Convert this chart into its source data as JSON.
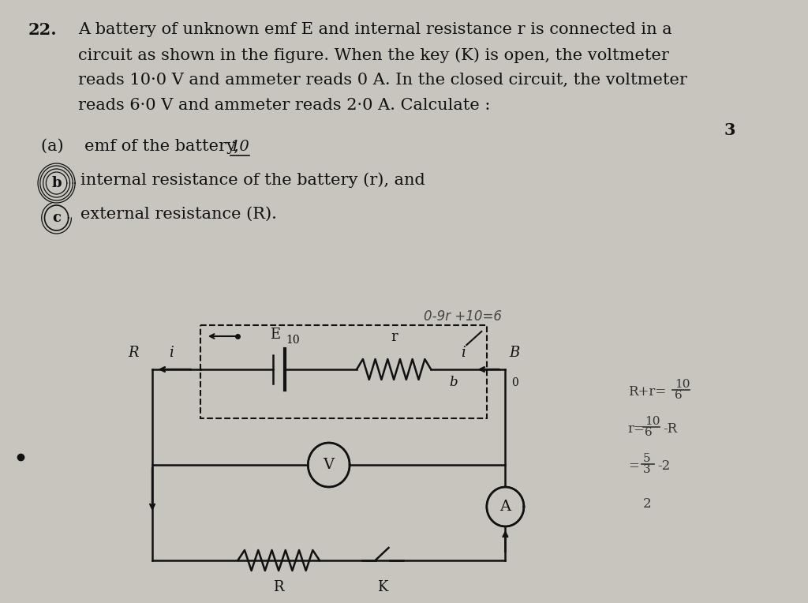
{
  "bg_color": "#c8c5be",
  "text_color": "#111111",
  "question_number": "22.",
  "question_line1": "A battery of unknown emf E and internal resistance r is connected in a",
  "question_line2": "circuit as shown in the figure. When the key (K) is open, the voltmeter",
  "question_line3": "reads 10·0 V and ammeter reads 0 A. In the closed circuit, the voltmeter",
  "question_line4": "reads 6·0 V and ammeter reads 2·0 A. Calculate :",
  "mark": "3",
  "part_a_text": "(a)    emf of the battery,",
  "part_a_answer": "10",
  "part_b_label": "b",
  "part_b_text": "internal resistance of the battery (r), and",
  "part_c_label": "c",
  "part_c_text": "external resistance (R).",
  "handwritten_note": "0-9r +10=6",
  "circuit_labels": {
    "R_left": "R",
    "i_left": "i",
    "E_label": "E",
    "E_subscript": "10",
    "r_label": "r",
    "b_label": "b",
    "i_right": "i",
    "B_label": "B",
    "B_subscript": "0",
    "V_label": "V",
    "A_label": "A",
    "R_bot_label": "R",
    "K_label": "K"
  },
  "right_notes": [
    "R+r= 10/6",
    "r= 10/6 -R",
    "= 5/3 -2",
    "2"
  ]
}
